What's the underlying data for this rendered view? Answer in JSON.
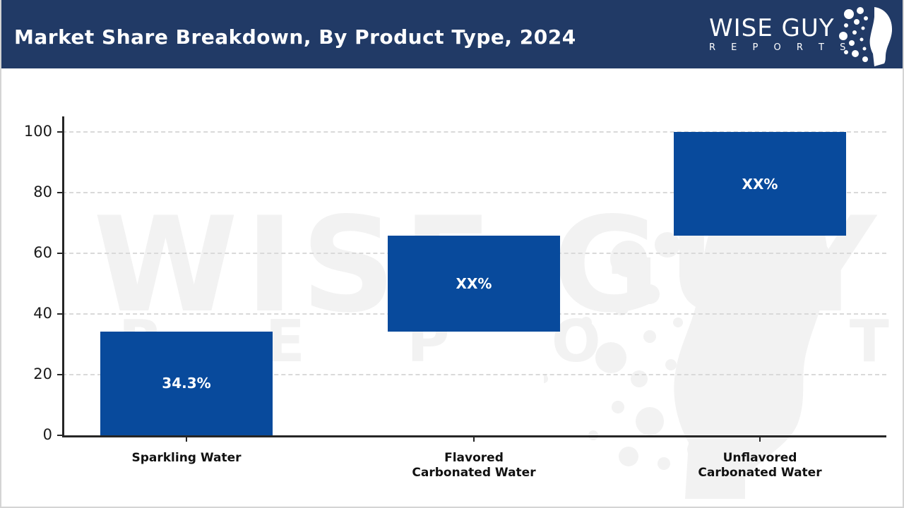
{
  "header": {
    "title": "Market Share Breakdown, By Product Type, 2024"
  },
  "logo": {
    "line1": "WISE GUY",
    "line2": "R E P O R T S"
  },
  "watermark": {
    "line1": "WISE GUY",
    "line2": "R E P O R T S"
  },
  "colors": {
    "header_bg": "#213A66",
    "bar": "#084A9C",
    "grid": "#D9D9D9",
    "axis": "#262626",
    "watermark": "#F2F2F2",
    "bar_label": "#FFFFFF"
  },
  "chart_data": {
    "type": "bar",
    "subtype": "waterfall",
    "title": "Market Share Breakdown, By Product Type, 2024",
    "categories": [
      "Sparkling Water",
      "Flavored Carbonated Water",
      "Unflavored Carbonated Water"
    ],
    "category_display_lines": [
      [
        "Sparkling Water"
      ],
      [
        "Flavored",
        "Carbonated Water"
      ],
      [
        "Unflavored",
        "Carbonated Water"
      ]
    ],
    "segments": [
      {
        "category": "Sparkling Water",
        "start": 0,
        "end": 34.3,
        "label": "34.3%"
      },
      {
        "category": "Flavored Carbonated Water",
        "start": 34.3,
        "end": 65.7,
        "label": "XX%"
      },
      {
        "category": "Unflavored Carbonated Water",
        "start": 65.7,
        "end": 100,
        "label": "XX%"
      }
    ],
    "ylim": [
      0,
      100
    ],
    "yticks": [
      0,
      20,
      40,
      60,
      80,
      100
    ],
    "xlabel": "",
    "ylabel": "",
    "grid": "horizontal-dashed",
    "legend": "none",
    "bar_color": "#084A9C"
  }
}
